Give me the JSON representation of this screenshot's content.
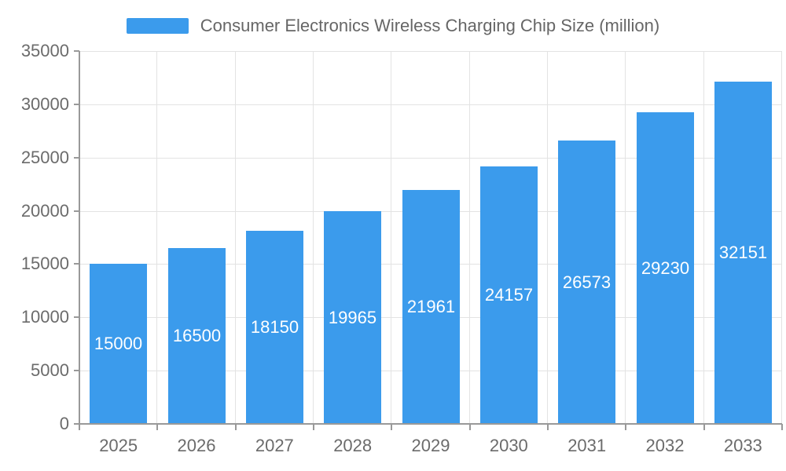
{
  "chart_data": {
    "type": "bar",
    "title": "Consumer Electronics Wireless Charging Chip Size (million)",
    "legend_position": "top",
    "categories": [
      "2025",
      "2026",
      "2027",
      "2028",
      "2029",
      "2030",
      "2031",
      "2032",
      "2033"
    ],
    "values": [
      15000,
      16500,
      18150,
      19965,
      21961,
      24157,
      26573,
      29230,
      32151
    ],
    "value_labels": [
      "15000",
      "16500",
      "18150",
      "19965",
      "21961",
      "24157",
      "26573",
      "29230",
      "32151"
    ],
    "xlabel": "",
    "ylabel": "",
    "ylim": [
      0,
      35000
    ],
    "yticks": [
      0,
      5000,
      10000,
      15000,
      20000,
      25000,
      30000,
      35000
    ],
    "grid": true,
    "colors": {
      "bar": "#3B9BEC",
      "grid": "#E3E3E3",
      "axis": "#999999",
      "axis_text": "#6B6B6B",
      "legend_text": "#666666",
      "value_text": "#FFFFFF",
      "background": "#FFFFFF"
    }
  }
}
